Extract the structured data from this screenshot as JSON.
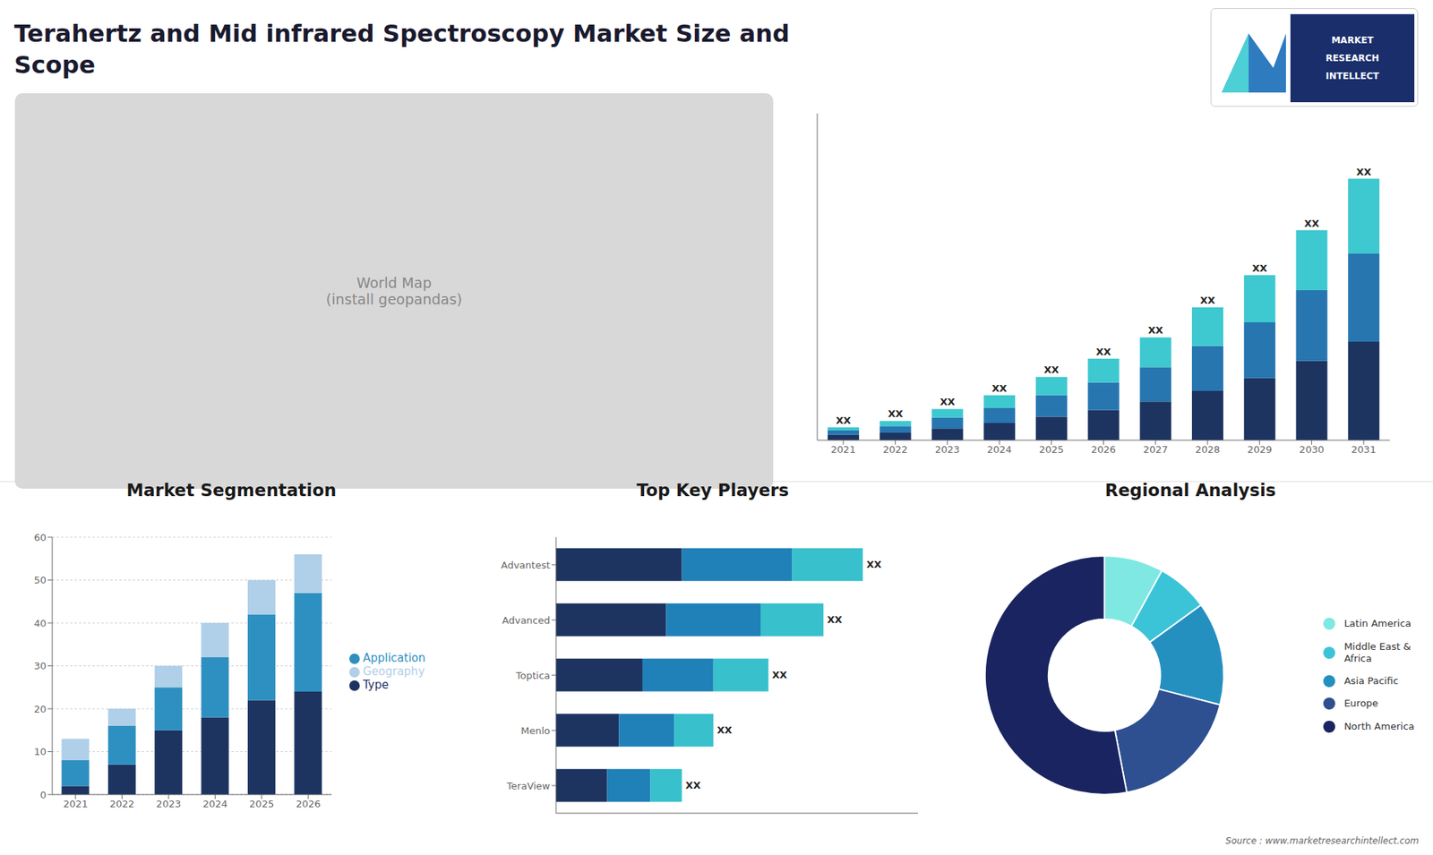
{
  "chart_data": [
    {
      "type": "map",
      "title": "Terahertz and Mid infrared Spectroscopy Market Size and\nScope",
      "annotations": [
        "World Map\n(install geopandas)",
        "MARKET",
        "RESEARCH",
        "INTELLECT",
        "Source : www.marketresearchintellect.com"
      ]
    },
    {
      "type": "bar",
      "stacked": true,
      "tick_labels": "x",
      "categories": [
        "2021",
        "2022",
        "2023",
        "2024",
        "2025",
        "2026",
        "2027",
        "2028",
        "2029",
        "2030",
        "2031"
      ],
      "series": [
        {
          "color": "#1d3461",
          "values": [
            2.5,
            3.5,
            5.5,
            8,
            11,
            14,
            18,
            23,
            29,
            37,
            46
          ]
        },
        {
          "color": "#2776b0",
          "values": [
            2.0,
            3.0,
            5.0,
            7.0,
            10,
            13,
            16,
            21,
            26,
            33,
            41
          ]
        },
        {
          "color": "#3ec8d0",
          "values": [
            1.5,
            2.5,
            4.0,
            6.0,
            8.5,
            11,
            14,
            18,
            22,
            28,
            35
          ],
          "value_labels": [
            "XX",
            "XX",
            "XX",
            "XX",
            "XX",
            "XX",
            "XX",
            "XX",
            "XX",
            "XX",
            "XX"
          ]
        }
      ],
      "ylim": [
        0,
        152.5
      ]
    },
    {
      "type": "bar",
      "title": "Market Segmentation",
      "stacked": true,
      "grid": true,
      "legend": "right",
      "categories": [
        "2021",
        "2022",
        "2023",
        "2024",
        "2025",
        "2026"
      ],
      "series": [
        {
          "name": "Type",
          "color": "#1d3461",
          "values": [
            2,
            7,
            15,
            18,
            22,
            24
          ]
        },
        {
          "name": "Application",
          "color": "#2e90c0",
          "values": [
            6,
            9,
            10,
            14,
            20,
            23
          ]
        },
        {
          "name": "Geography",
          "color": "#b0cfe8",
          "values": [
            5,
            4,
            5,
            8,
            8,
            9
          ]
        }
      ],
      "ylim": [
        0,
        60
      ],
      "yticks": [
        0,
        10,
        20,
        30,
        40,
        50,
        60
      ]
    },
    {
      "type": "bar",
      "title": "Top Key Players",
      "orientation": "horizontal",
      "stacked": true,
      "tick_labels": "y",
      "categories": [
        "Advantest",
        "Advanced",
        "Toptica",
        "Menlo",
        "TeraView"
      ],
      "series": [
        {
          "color": "#1d3461",
          "values": [
            32,
            28,
            22,
            16,
            13
          ]
        },
        {
          "color": "#2080b8",
          "values": [
            28,
            24,
            18,
            14,
            11
          ]
        },
        {
          "color": "#38c0cc",
          "values": [
            18,
            16,
            14,
            10,
            8
          ],
          "value_labels": [
            "XX",
            "XX",
            "XX",
            "XX",
            "XX"
          ]
        }
      ],
      "xlim": [
        0,
        92.04
      ]
    },
    {
      "type": "pie",
      "title": "Regional Analysis",
      "legend": "right",
      "categories": [
        "Latin America",
        "Middle East &\nAfrica",
        "Asia Pacific",
        "Europe",
        "North America"
      ],
      "values": [
        8,
        7,
        14,
        18,
        53
      ],
      "colors": [
        "#7fe8e2",
        "#3bc4d8",
        "#2490c0",
        "#2e5090",
        "#1a2460"
      ]
    }
  ]
}
